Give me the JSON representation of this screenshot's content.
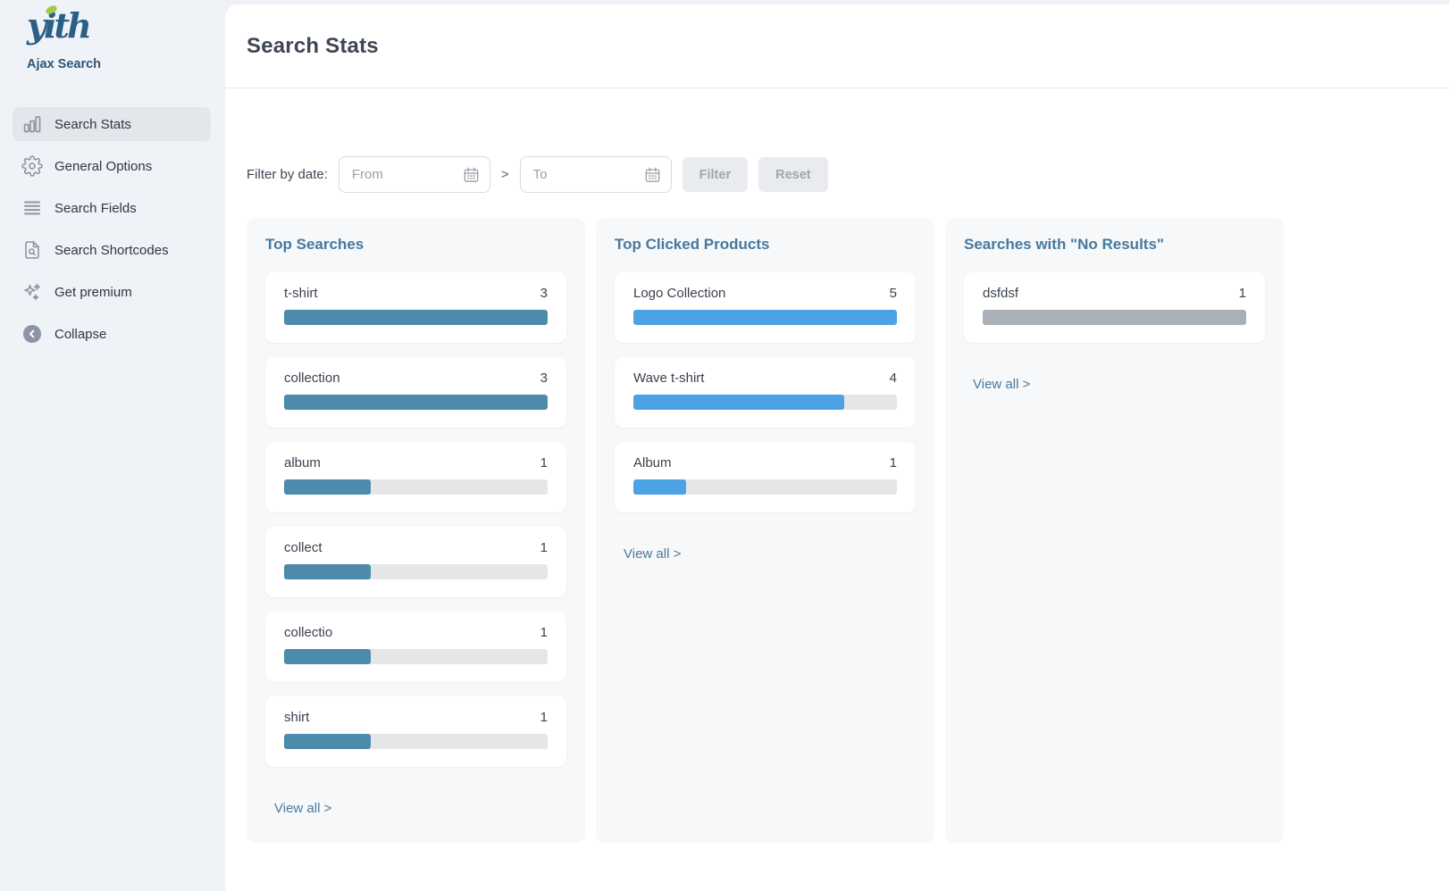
{
  "brand": {
    "logo_text": "yith",
    "plugin_name": "Ajax Search"
  },
  "sidebar": {
    "items": [
      {
        "label": "Search Stats",
        "icon": "bar-chart-icon",
        "active": true
      },
      {
        "label": "General Options",
        "icon": "gear-icon",
        "active": false
      },
      {
        "label": "Search Fields",
        "icon": "list-lines-icon",
        "active": false
      },
      {
        "label": "Search Shortcodes",
        "icon": "shortcode-doc-icon",
        "active": false
      },
      {
        "label": "Get premium",
        "icon": "sparkles-icon",
        "active": false
      },
      {
        "label": "Collapse",
        "icon": "collapse-circle-icon",
        "active": false
      }
    ]
  },
  "header": {
    "title": "Search Stats"
  },
  "filter": {
    "label": "Filter by date:",
    "from_placeholder": "From",
    "to_placeholder": "To",
    "separator": ">",
    "filter_label": "Filter",
    "reset_label": "Reset"
  },
  "panels": [
    {
      "title": "Top Searches",
      "bar_color": "#4c8bab",
      "view_all_label": "View all >",
      "items": [
        {
          "label": "t-shirt",
          "count": 3,
          "pct": 100
        },
        {
          "label": "collection",
          "count": 3,
          "pct": 100
        },
        {
          "label": "album",
          "count": 1,
          "pct": 33
        },
        {
          "label": "collect",
          "count": 1,
          "pct": 33
        },
        {
          "label": "collectio",
          "count": 1,
          "pct": 33
        },
        {
          "label": "shirt",
          "count": 1,
          "pct": 33
        }
      ]
    },
    {
      "title": "Top Clicked Products",
      "bar_color": "#4ba3e3",
      "view_all_label": "View all >",
      "items": [
        {
          "label": "Logo Collection",
          "count": 5,
          "pct": 100
        },
        {
          "label": "Wave t-shirt",
          "count": 4,
          "pct": 80
        },
        {
          "label": "Album",
          "count": 1,
          "pct": 20
        }
      ]
    },
    {
      "title": "Searches with \"No Results\"",
      "bar_color": "#a9b0b8",
      "view_all_label": "View all >",
      "items": [
        {
          "label": "dsfdsf",
          "count": 1,
          "pct": 100
        }
      ]
    }
  ],
  "colors": {
    "accent_heading": "#47799f",
    "top_searches_bar": "#4c8bab",
    "top_clicked_bar": "#4ba3e3",
    "no_results_bar": "#a9b0b8",
    "sidebar_bg": "#eff2f7",
    "panel_bg": "#f7f8f9"
  }
}
